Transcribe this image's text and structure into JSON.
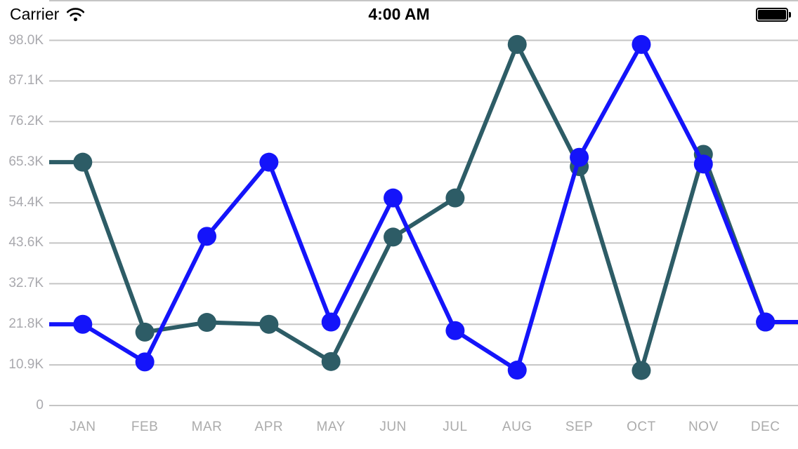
{
  "status_bar": {
    "carrier": "Carrier",
    "time": "4:00 AM",
    "wifi_icon": "wifi-icon",
    "battery_icon": "battery-full-icon"
  },
  "colors": {
    "background": "#ffffff",
    "gridline": "#c5c5c5",
    "axis_text": "#a9a9ae",
    "status_text": "#000000",
    "series_teal": "#2d5c66",
    "series_blue": "#1414fa"
  },
  "chart_data": {
    "type": "line",
    "title": "",
    "xlabel": "",
    "ylabel": "",
    "unit_suffix": "K",
    "grid": true,
    "legend": "none",
    "ylim": [
      0,
      98.0
    ],
    "categories": [
      "JAN",
      "FEB",
      "MAR",
      "APR",
      "MAY",
      "JUN",
      "JUL",
      "AUG",
      "SEP",
      "OCT",
      "NOV",
      "DEC"
    ],
    "y_ticks": [
      {
        "value": 0,
        "label": "0"
      },
      {
        "value": 10.9,
        "label": "10.9K"
      },
      {
        "value": 21.8,
        "label": "21.8K"
      },
      {
        "value": 32.7,
        "label": "32.7K"
      },
      {
        "value": 43.6,
        "label": "43.6K"
      },
      {
        "value": 54.4,
        "label": "54.4K"
      },
      {
        "value": 65.3,
        "label": "65.3K"
      },
      {
        "value": 76.2,
        "label": "76.2K"
      },
      {
        "value": 87.1,
        "label": "87.1K"
      },
      {
        "value": 98.0,
        "label": "98.0K"
      }
    ],
    "series": [
      {
        "name": "teal-series",
        "color": "#2d5c66",
        "values": [
          65.3,
          19.7,
          22.3,
          21.8,
          11.8,
          45.2,
          55.7,
          96.9,
          64.1,
          9.4,
          67.4,
          22.4
        ]
      },
      {
        "name": "blue-series",
        "color": "#1414fa",
        "values": [
          21.8,
          11.7,
          45.4,
          65.3,
          22.4,
          55.7,
          20.1,
          9.5,
          66.6,
          96.9,
          64.8,
          22.4
        ]
      }
    ]
  }
}
